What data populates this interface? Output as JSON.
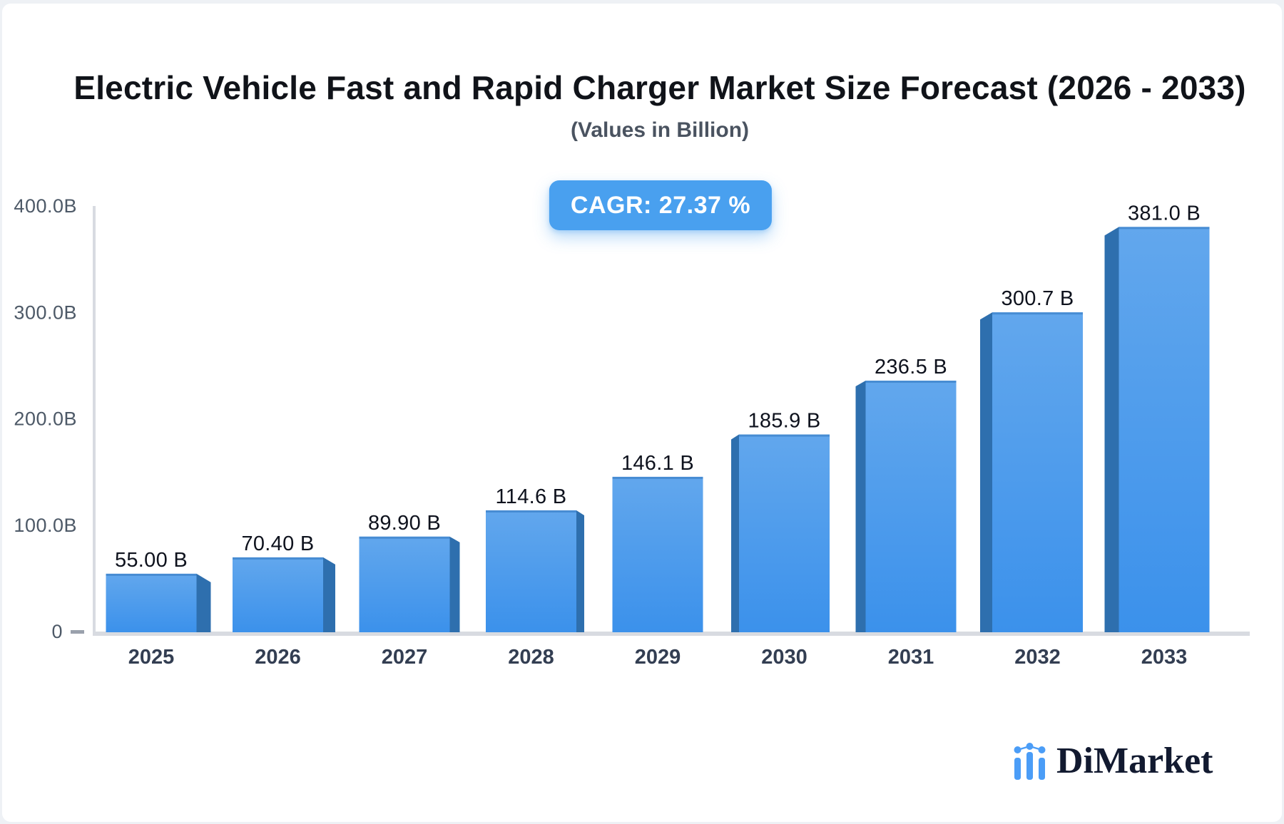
{
  "header": {
    "title": "Electric Vehicle Fast and Rapid Charger Market Size Forecast (2026 - 2033)",
    "subtitle": "(Values in Billion)"
  },
  "badge": {
    "label": "CAGR: 27.37 %"
  },
  "chart_data": {
    "type": "bar",
    "style": "3d-perspective",
    "title": "Electric Vehicle Fast and Rapid Charger Market Size Forecast (2026 - 2033)",
    "subtitle": "(Values in Billion)",
    "cagr_percent": 27.37,
    "categories": [
      "2025",
      "2026",
      "2027",
      "2028",
      "2029",
      "2030",
      "2031",
      "2032",
      "2033"
    ],
    "values": [
      55.0,
      70.4,
      89.9,
      114.6,
      146.1,
      185.9,
      236.5,
      300.7,
      381.0
    ],
    "bar_labels": [
      "55.00 B",
      "70.40 B",
      "89.90 B",
      "114.6 B",
      "146.1 B",
      "185.9 B",
      "236.5 B",
      "300.7 B",
      "381.0 B"
    ],
    "xlabel": "",
    "ylabel": "",
    "ylim": [
      0,
      400
    ],
    "grid": false,
    "legend": null,
    "y_axis": {
      "tick_labels": [
        "400.0B",
        "300.0B",
        "200.0B",
        "100.0B",
        "0"
      ],
      "tick_values": [
        400,
        300,
        200,
        100,
        0
      ]
    },
    "colors": {
      "bar_top": "#62A7ED",
      "bar_bottom": "#3B91EB",
      "bar_edge": "#4589CF",
      "bar_side": "#2E6FAE",
      "axis_line": "#D8DBE1",
      "zero_dash": "#9AA1AC",
      "tick_text": "#4D5967",
      "year_text": "#333E52",
      "value_text": "#0E121D"
    }
  },
  "branding": {
    "name": "DiMarket"
  }
}
